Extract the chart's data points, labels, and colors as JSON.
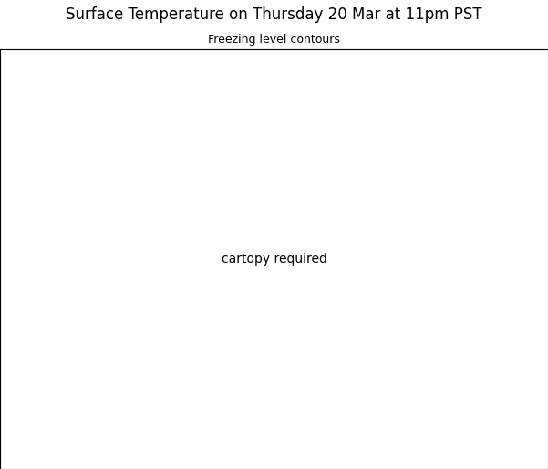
{
  "title": "Surface Temperature on Thursday 20 Mar at 11pm PST",
  "subtitle": "Freezing level contours",
  "title_fontsize": 12,
  "subtitle_fontsize": 9,
  "background_color": "#ffffff",
  "ocean_color": "#c8d8eb",
  "border_color": "#888888",
  "contour_color": "#cc0000",
  "contour_linewidth": 1.4,
  "contour_label_fontsize": 7,
  "grid_color": "#a0b8cc",
  "grid_linewidth": 0.5,
  "lon_min": 98.0,
  "lon_max": 128.0,
  "lat_min": 0.0,
  "lat_max": 24.0,
  "figsize": [
    6.01,
    5.14
  ],
  "dpi": 100
}
